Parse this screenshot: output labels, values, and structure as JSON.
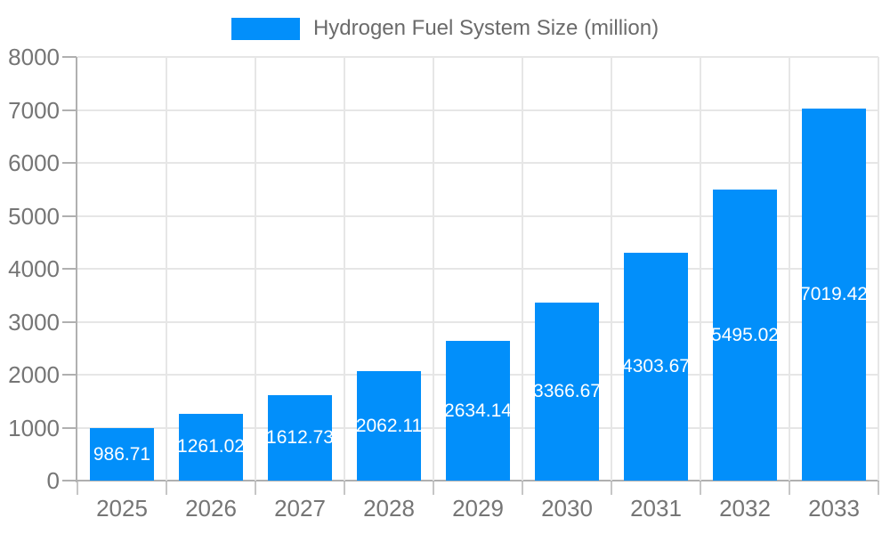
{
  "legend": {
    "label": "Hydrogen Fuel System Size (million)"
  },
  "colors": {
    "bar": "#028ffa",
    "gridline": "#e6e6e6",
    "axis_line": "#b0b0b0",
    "tick_label": "#757575",
    "bar_value_label": "#ffffff",
    "legend_text": "#6b6b6b"
  },
  "chart_data": {
    "type": "bar",
    "title": "Hydrogen Fuel System Size (million)",
    "categories": [
      "2025",
      "2026",
      "2027",
      "2028",
      "2029",
      "2030",
      "2031",
      "2032",
      "2033"
    ],
    "values": [
      986.71,
      1261.02,
      1612.73,
      2062.11,
      2634.14,
      3366.67,
      4303.67,
      5495.02,
      7019.42
    ],
    "value_labels": [
      "986.71",
      "1261.02",
      "1612.73",
      "2062.11",
      "2634.14",
      "3366.67",
      "4303.67",
      "5495.02",
      "7019.42"
    ],
    "xlabel": "",
    "ylabel": "",
    "ylim": [
      0,
      8000
    ],
    "y_ticks": [
      0,
      1000,
      2000,
      3000,
      4000,
      5000,
      6000,
      7000,
      8000
    ],
    "grid": true,
    "legend_position": "top",
    "value_label_position": "center",
    "value_label_color": "#ffffff"
  }
}
